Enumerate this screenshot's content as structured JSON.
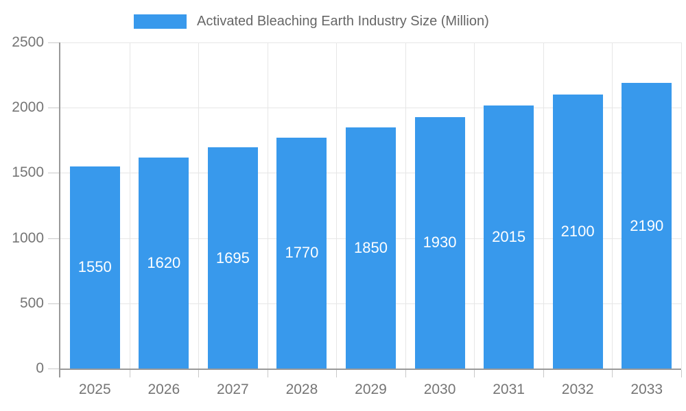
{
  "legend": {
    "series_label": "Activated Bleaching Earth Industry Size (Million)"
  },
  "chart_data": {
    "type": "bar",
    "title": "Activated Bleaching Earth Industry Size (Million)",
    "categories": [
      "2025",
      "2026",
      "2027",
      "2028",
      "2029",
      "2030",
      "2031",
      "2032",
      "2033"
    ],
    "values": [
      1550,
      1620,
      1695,
      1770,
      1850,
      1930,
      2015,
      2100,
      2190
    ],
    "xlabel": "",
    "ylabel": "",
    "ylim": [
      0,
      2500
    ],
    "y_ticks": [
      0,
      500,
      1000,
      1500,
      2000,
      2500
    ],
    "grid": true,
    "legend_position": "top-center",
    "bar_labels_inside": true,
    "colors": {
      "bar": "#3899ec",
      "bar_label": "#ffffff",
      "axis_line": "#999999",
      "grid_line": "#e6e6e6",
      "tick_line": "#c8c8c8",
      "axis_text": "#757575",
      "legend_text": "#666666",
      "background": "#ffffff"
    }
  }
}
